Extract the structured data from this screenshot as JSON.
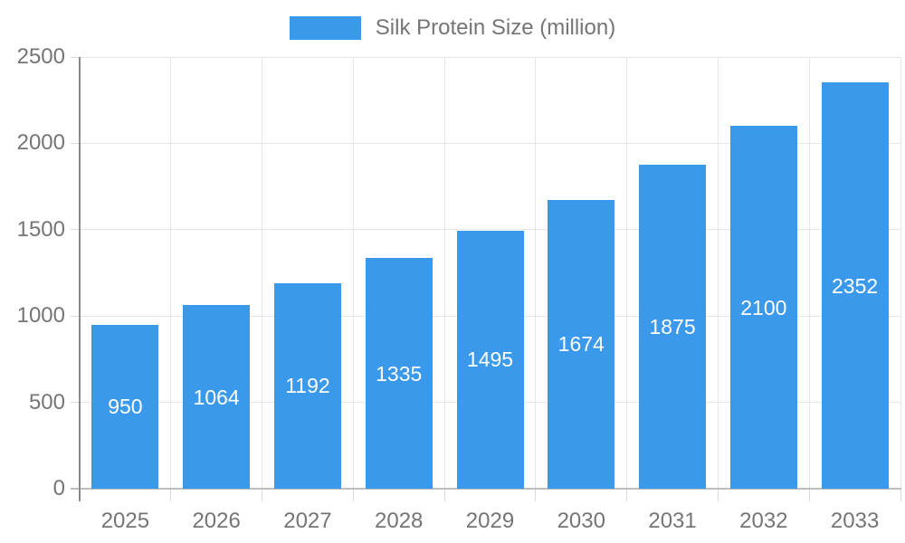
{
  "legend": {
    "label": "Silk Protein Size (million)"
  },
  "chart_data": {
    "type": "bar",
    "title": "",
    "xlabel": "",
    "ylabel": "",
    "series_name": "Silk Protein Size (million)",
    "categories": [
      "2025",
      "2026",
      "2027",
      "2028",
      "2029",
      "2030",
      "2031",
      "2032",
      "2033"
    ],
    "values": [
      950,
      1064,
      1192,
      1335,
      1495,
      1674,
      1875,
      2100,
      2352
    ],
    "ylim": [
      0,
      2500
    ],
    "yticks": [
      0,
      500,
      1000,
      1500,
      2000,
      2500
    ],
    "grid": true,
    "legend_position": "top-center",
    "bar_value_labels_inside": true
  },
  "colors": {
    "bar": "#3B99EC",
    "bar_label": "#FFFFFF",
    "axis_text": "#757575",
    "legend_text": "#757575",
    "gridline": "#E6E6E6",
    "baseline": "#BDBDBD",
    "y_axis_line": "#8C8C8C",
    "background": "#FFFFFF"
  }
}
